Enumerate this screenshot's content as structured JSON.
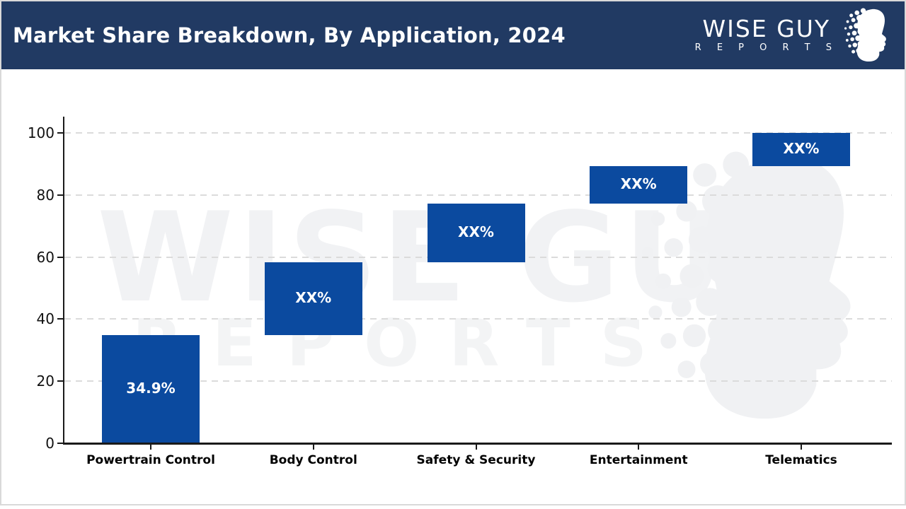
{
  "header": {
    "title": "Market Share Breakdown, By Application, 2024",
    "bg_color": "#213a63",
    "logo": {
      "line1": "WISE GUY",
      "line2": "R E P O R T S"
    }
  },
  "watermark": {
    "line1": "WISE GUY",
    "line2": "REPORTS"
  },
  "chart_data": {
    "type": "bar",
    "subtype": "waterfall-floating-bars",
    "title": "Market Share Breakdown, By Application, 2024",
    "categories": [
      "Powertrain Control",
      "Body Control",
      "Safety & Security",
      "Entertainment",
      "Telematics"
    ],
    "bars": [
      {
        "category": "Powertrain Control",
        "start": 0,
        "end": 34.9,
        "label": "34.9%"
      },
      {
        "category": "Body Control",
        "start": 34.9,
        "end": 58.4,
        "label": "XX%"
      },
      {
        "category": "Safety & Security",
        "start": 58.4,
        "end": 77.3,
        "label": "XX%"
      },
      {
        "category": "Entertainment",
        "start": 77.3,
        "end": 89.4,
        "label": "XX%"
      },
      {
        "category": "Telematics",
        "start": 89.4,
        "end": 100,
        "label": "XX%"
      }
    ],
    "y_ticks": [
      0,
      20,
      40,
      60,
      80,
      100
    ],
    "ylim": [
      0,
      105
    ],
    "xlabel": "",
    "ylabel": "",
    "grid": "horizontal-dashed",
    "legend": "none",
    "bar_color": "#0b4a9f",
    "bar_label_color": "#ffffff",
    "first_bar_label_color": "#ffffff"
  }
}
